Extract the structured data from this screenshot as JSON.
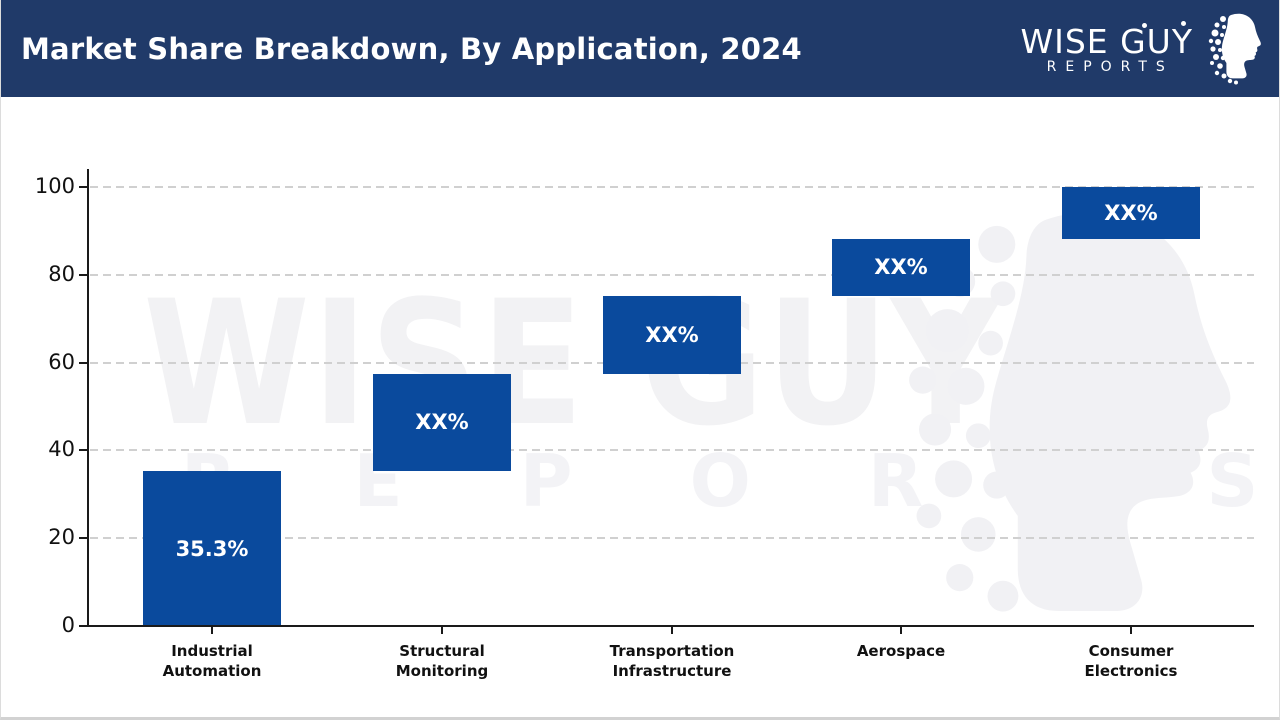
{
  "header": {
    "title": "Market Share Breakdown, By Application, 2024",
    "logo": {
      "brand": "WISE GUY",
      "subtitle": "REPORTS"
    }
  },
  "watermark": {
    "line1": "WISE GUY",
    "line2": "R E P O R T S"
  },
  "colors": {
    "header_bg": "#203a69",
    "header_text": "#ffffff",
    "bar": "#0a4a9d",
    "bar_label": "#ffffff",
    "axis": "#1a1a1a",
    "gridline": "#d0d0d0",
    "tick_label": "#111111",
    "watermark": "#f2f2f4"
  },
  "chart_data": {
    "type": "bar",
    "subtype": "waterfall",
    "title": "Market Share Breakdown, By Application, 2024",
    "unit": "%",
    "categories": [
      [
        "Industrial",
        "Automation"
      ],
      [
        "Structural",
        "Monitoring"
      ],
      [
        "Transportation",
        "Infrastructure"
      ],
      [
        "Aerospace"
      ],
      [
        "Consumer",
        "Electronics"
      ]
    ],
    "segments": [
      {
        "start": 0,
        "end": 35.3,
        "label": "35.3%"
      },
      {
        "start": 35.3,
        "end": 57.5,
        "label": "XX%"
      },
      {
        "start": 57.5,
        "end": 75.2,
        "label": "XX%"
      },
      {
        "start": 75.2,
        "end": 88.2,
        "label": "XX%"
      },
      {
        "start": 88.2,
        "end": 100,
        "label": "XX%"
      }
    ],
    "xlabel": "",
    "ylabel": "",
    "ylim": [
      0,
      100
    ],
    "yticks": [
      0,
      20,
      40,
      60,
      80,
      100
    ],
    "grid": "horizontal-dashed",
    "legend": "none"
  }
}
